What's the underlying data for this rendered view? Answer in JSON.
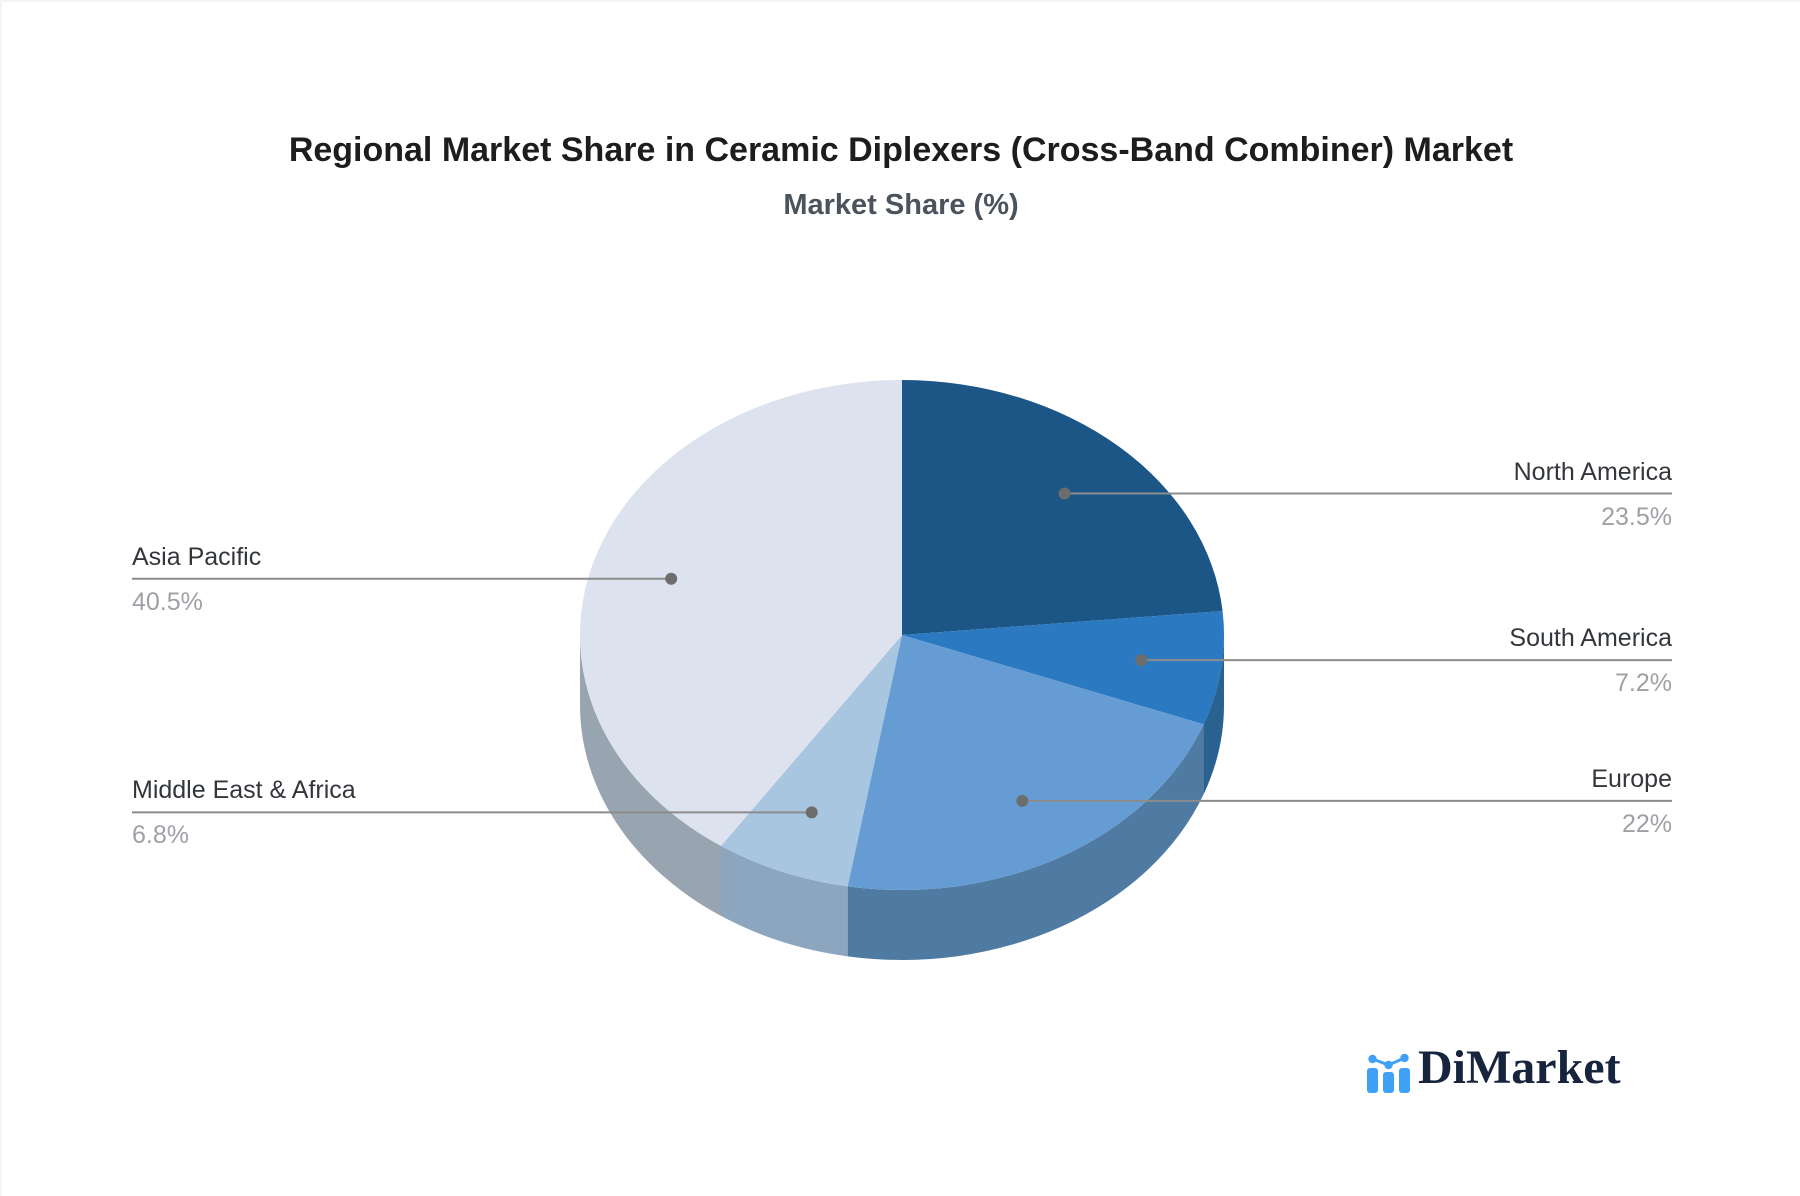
{
  "page": {
    "title": "Regional Market Share in Ceramic Diplexers (Cross-Band Combiner) Market",
    "subtitle": "Market Share (%)"
  },
  "chart_data": {
    "type": "pie",
    "title": "Regional Market Share in Ceramic Diplexers (Cross-Band Combiner) Market",
    "subtitle": "Market Share (%)",
    "unit": "%",
    "style": "3d",
    "start_angle": "top",
    "direction": "clockwise",
    "total": 100,
    "slices": [
      {
        "label": "North America",
        "value": 23.5,
        "display": "23.5%",
        "color": "#1B5687",
        "side_color": "#17496F",
        "label_side": "right"
      },
      {
        "label": "South America",
        "value": 7.2,
        "display": "7.2%",
        "color": "#2B7AC1",
        "side_color": "#2A628F",
        "label_side": "right"
      },
      {
        "label": "Europe",
        "value": 22,
        "display": "22%",
        "color": "#669CD4",
        "side_color": "#4F7BA3",
        "label_side": "right"
      },
      {
        "label": "Middle East & Africa",
        "value": 6.8,
        "display": "6.8%",
        "color": "#A9C6E0",
        "side_color": "#8CA6BF",
        "label_side": "left"
      },
      {
        "label": "Asia Pacific",
        "value": 40.5,
        "display": "40.5%",
        "color": "#DCE3EF",
        "side_color": "#99A4B1",
        "label_side": "left"
      }
    ],
    "leader_line_color": "#8C8C8C",
    "dot_color": "#6D6D6D",
    "label_color": "#33373B",
    "value_color": "#9DA1A5"
  },
  "logo": {
    "text": "DiMarket",
    "icon": "bar-chart-trend-icon",
    "icon_color": "#3FA0F6",
    "text_color": "#16243E"
  }
}
